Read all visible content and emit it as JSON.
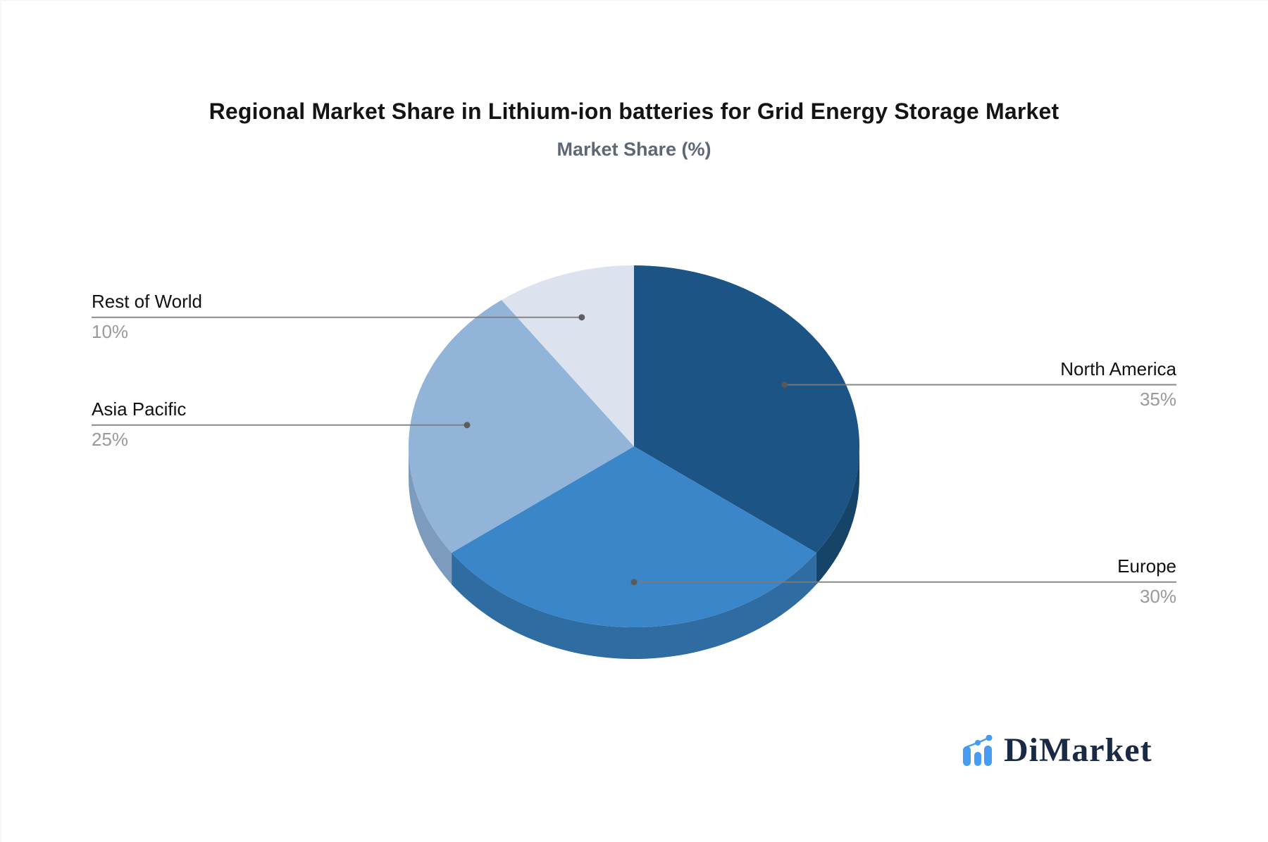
{
  "chart_data": {
    "type": "pie",
    "style": "3d-pie-with-callout-labels",
    "title": "Regional Market Share in Lithium-ion batteries for Grid Energy Storage Market",
    "subtitle": "Market Share (%)",
    "unit": "%",
    "categories": [
      "North America",
      "Europe",
      "Asia Pacific",
      "Rest of World"
    ],
    "values": [
      35,
      30,
      25,
      10
    ],
    "slices": [
      {
        "label": "North America",
        "value": 35,
        "percent_label": "35%",
        "color": "#1c5486",
        "side_color": "#164368",
        "label_side": "right"
      },
      {
        "label": "Europe",
        "value": 30,
        "percent_label": "30%",
        "color": "#3a86c8",
        "side_color": "#2f6ca2",
        "label_side": "right"
      },
      {
        "label": "Asia Pacific",
        "value": 25,
        "percent_label": "25%",
        "color": "#92b4d9",
        "side_color": "#7d9cbd",
        "label_side": "left"
      },
      {
        "label": "Rest of World",
        "value": 10,
        "percent_label": "10%",
        "color": "#dce3ee",
        "side_color": "#bcc8da",
        "label_side": "left"
      }
    ],
    "legend_position": "callout-labels",
    "colors": {
      "leader_line": "#7b7b7b",
      "leader_dot": "#595959",
      "label_text": "#111111",
      "percent_text": "#999999",
      "title_text": "#141414",
      "subtitle_text": "#5d6874"
    }
  },
  "branding": {
    "logo_text": "DiMarket",
    "logo_icon": "bar-chart-trend-icon",
    "logo_text_color": "#1b2a44",
    "logo_icon_color": "#459cf2"
  }
}
